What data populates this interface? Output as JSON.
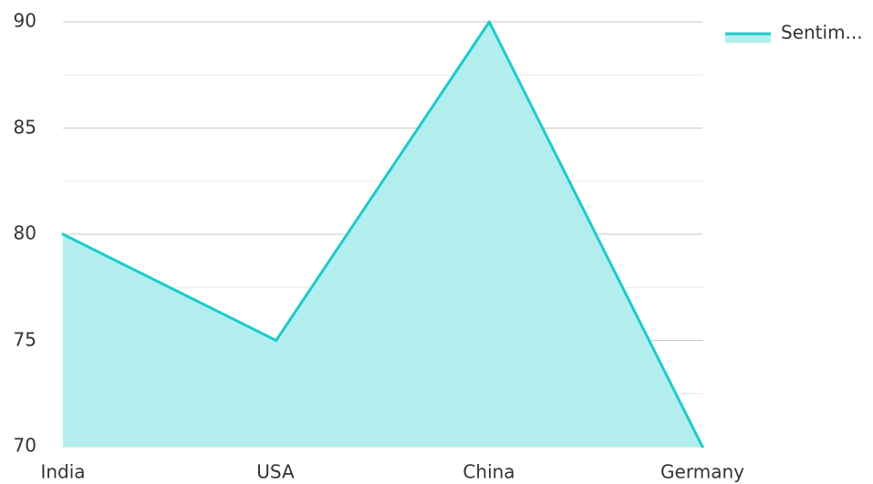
{
  "chart_data": {
    "type": "area",
    "categories": [
      "India",
      "USA",
      "China",
      "Germany"
    ],
    "series": [
      {
        "name": "Sentim...",
        "values": [
          80,
          75,
          90,
          70
        ],
        "color": "#1ecbcb",
        "fill": "#b2eeee"
      }
    ],
    "y_ticks": [
      "70",
      "75",
      "80",
      "85",
      "90"
    ],
    "ylim": [
      70,
      90
    ],
    "grid": true,
    "legend_position": "top-right"
  }
}
